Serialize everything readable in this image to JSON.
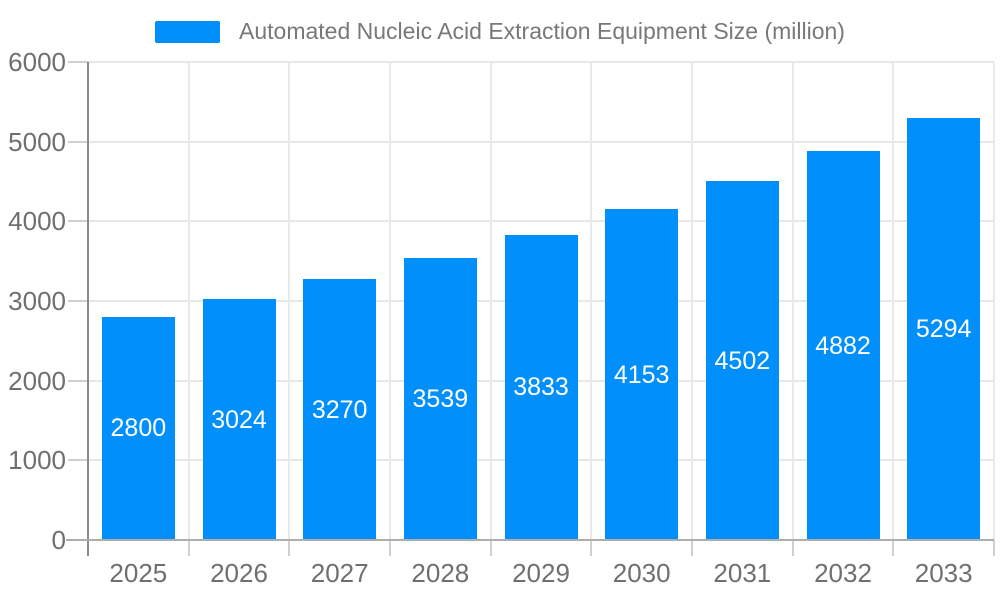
{
  "legend": {
    "label": "Automated Nucleic Acid Extraction Equipment Size (million)"
  },
  "colors": {
    "bar": "#008FFB",
    "grid_horizontal": "#e7e7e7",
    "grid_vertical": "#e9e9e9",
    "tick": "#cfcfcf",
    "x_axis_line": "#adadad",
    "y_axis_line": "#8a8a8a",
    "axis_text": "#6f6f6f",
    "legend_text": "#787878",
    "value_text": "#ffffff",
    "background": "#ffffff"
  },
  "chart_data": {
    "type": "bar",
    "title": "Automated Nucleic Acid Extraction Equipment Size (million)",
    "categories": [
      "2025",
      "2026",
      "2027",
      "2028",
      "2029",
      "2030",
      "2031",
      "2032",
      "2033"
    ],
    "values": [
      2800,
      3024,
      3270,
      3539,
      3833,
      4153,
      4502,
      4882,
      5294
    ],
    "series_name": "Automated Nucleic Acid Extraction Equipment Size (million)",
    "xlabel": "",
    "ylabel": "",
    "ylim": [
      0,
      6000
    ],
    "yticks": [
      0,
      1000,
      2000,
      3000,
      4000,
      5000,
      6000
    ],
    "grid": true,
    "legend_position": "top",
    "value_label_position": "inside-center"
  }
}
